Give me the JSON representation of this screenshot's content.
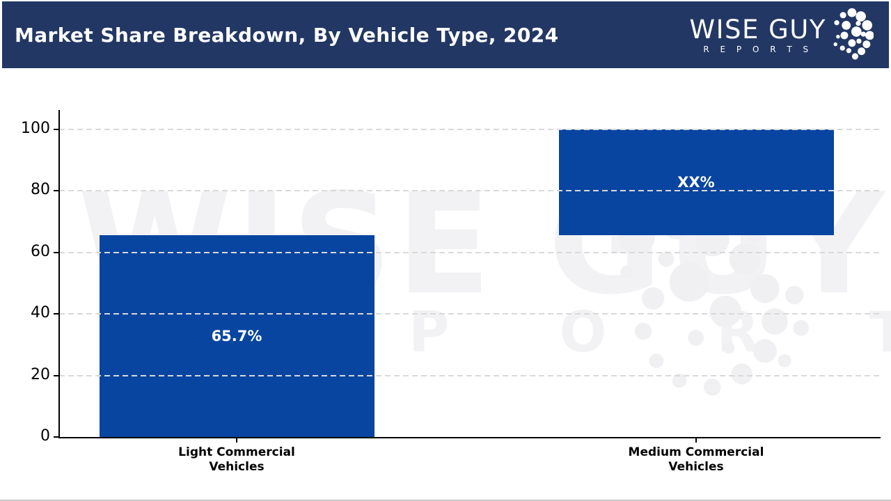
{
  "header": {
    "title": "Market Share Breakdown, By Vehicle Type, 2024",
    "brand": {
      "line1": "WISE GUY",
      "line2": "R E P O R T S",
      "face_icon": "wise-guy-face-icon"
    }
  },
  "watermark": {
    "line1": "WISE GUY",
    "line2": "R E P O R T S"
  },
  "chart_data": {
    "type": "bar",
    "subtype": "floating-range-bars",
    "title": "Market Share Breakdown, By Vehicle Type, 2024",
    "categories": [
      "Light Commercial Vehicles",
      "Medium Commercial Vehicles"
    ],
    "bars": [
      {
        "category": "Light Commercial Vehicles",
        "start": 0,
        "end": 65.7,
        "label": "65.7%"
      },
      {
        "category": "Medium Commercial Vehicles",
        "start": 65.7,
        "end": 100,
        "label": "XX%"
      }
    ],
    "xlabel": "",
    "ylabel": "",
    "ylim": [
      0,
      100
    ],
    "yticks": [
      0,
      20,
      40,
      60,
      80,
      100
    ],
    "grid": "dashed-horizontal",
    "legend": "none",
    "bar_color": "#0845a0",
    "value_label_color": "#ffffff"
  },
  "colors": {
    "header_bg": "#223763",
    "bar": "#0845a0",
    "gridline": "#d9d9d9",
    "axis": "#000000",
    "watermark": "#f2f2f4",
    "page_bg": "#ffffff",
    "bottom_line": "#c9c9c9"
  }
}
